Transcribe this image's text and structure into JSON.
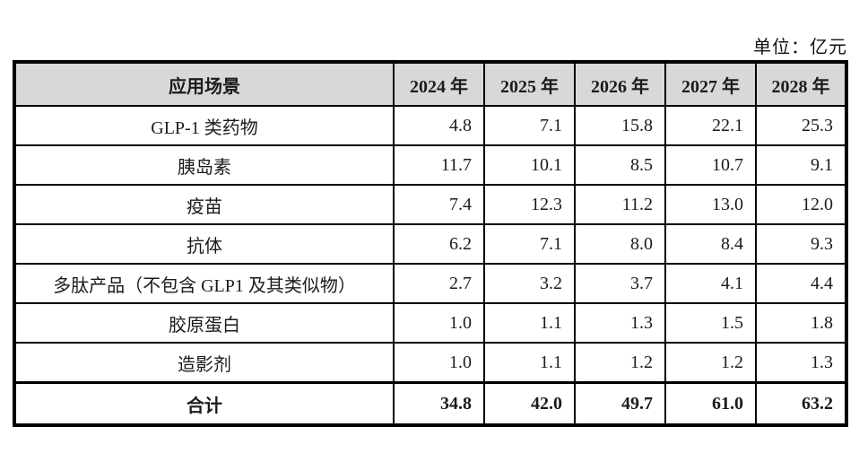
{
  "page": {
    "unit_label": "单位：亿元"
  },
  "table": {
    "columns": [
      "应用场景",
      "2024 年",
      "2025 年",
      "2026 年",
      "2027 年",
      "2028 年"
    ],
    "rows": [
      {
        "label": "GLP-1 类药物",
        "values": [
          "4.8",
          "7.1",
          "15.8",
          "22.1",
          "25.3"
        ]
      },
      {
        "label": "胰岛素",
        "values": [
          "11.7",
          "10.1",
          "8.5",
          "10.7",
          "9.1"
        ]
      },
      {
        "label": "疫苗",
        "values": [
          "7.4",
          "12.3",
          "11.2",
          "13.0",
          "12.0"
        ]
      },
      {
        "label": "抗体",
        "values": [
          "6.2",
          "7.1",
          "8.0",
          "8.4",
          "9.3"
        ]
      },
      {
        "label": "多肽产品（不包含 GLP1 及其类似物）",
        "values": [
          "2.7",
          "3.2",
          "3.7",
          "4.1",
          "4.4"
        ]
      },
      {
        "label": "胶原蛋白",
        "values": [
          "1.0",
          "1.1",
          "1.3",
          "1.5",
          "1.8"
        ]
      },
      {
        "label": "造影剂",
        "values": [
          "1.0",
          "1.1",
          "1.2",
          "1.2",
          "1.3"
        ]
      },
      {
        "label": "合计",
        "values": [
          "34.8",
          "42.0",
          "49.7",
          "61.0",
          "63.2"
        ]
      }
    ],
    "colors": {
      "header_background": "#d8d8d8",
      "border": "#000000",
      "text": "#1b1b1b"
    }
  }
}
